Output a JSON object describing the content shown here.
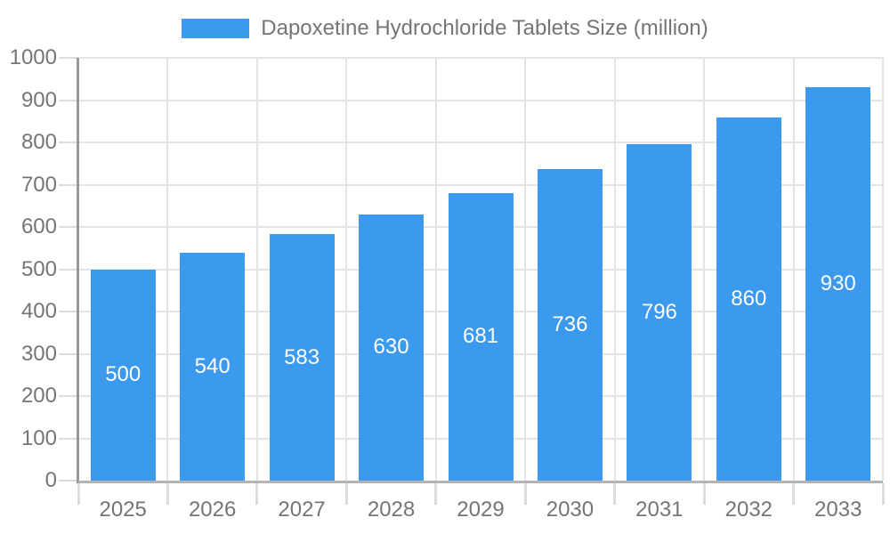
{
  "legend": {
    "label": "Dapoxetine Hydrochloride Tablets Size (million)"
  },
  "chart_data": {
    "type": "bar",
    "title": "Dapoxetine Hydrochloride Tablets Size (million)",
    "categories": [
      "2025",
      "2026",
      "2027",
      "2028",
      "2029",
      "2030",
      "2031",
      "2032",
      "2033"
    ],
    "values": [
      500,
      540,
      583,
      630,
      681,
      736,
      796,
      860,
      930
    ],
    "xlabel": "",
    "ylabel": "",
    "ylim": [
      0,
      1000
    ],
    "ytick_step": 100,
    "ytick_labels": [
      "0",
      "100",
      "200",
      "300",
      "400",
      "500",
      "600",
      "700",
      "800",
      "900",
      "1000"
    ],
    "grid": true,
    "legend_position": "top",
    "legend_entries": [
      "Dapoxetine Hydrochloride Tablets Size (million)"
    ],
    "bar_value_labels_inside": true
  },
  "colors": {
    "bar": "#3b99ee",
    "bar_value_text": "#ffffff",
    "grid": "#e4e4e4",
    "tick": "#dcdcdc",
    "y_axis": "#999999",
    "x_axis": "#b3b3b3",
    "tick_text": "#757575",
    "legend_text": "#757575",
    "background": "#ffffff"
  }
}
